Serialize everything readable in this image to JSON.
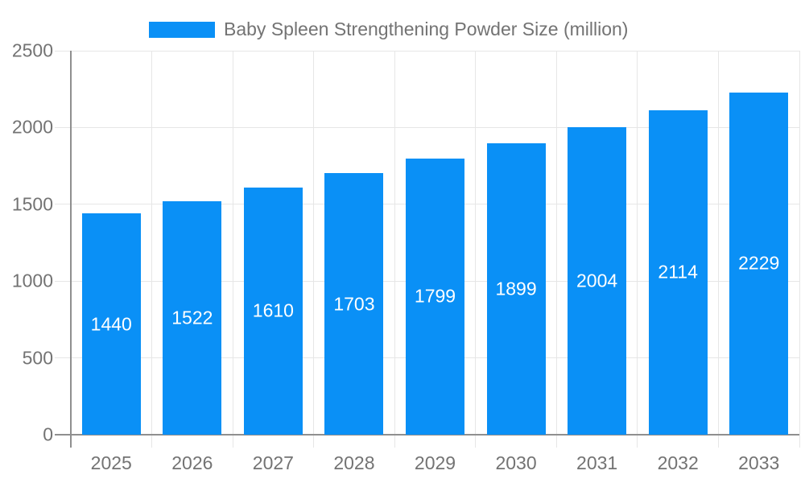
{
  "legend": {
    "label": "Baby Spleen Strengthening Powder Size (million)"
  },
  "colors": {
    "accent": "#0a90f6",
    "grid": "#e6e6e6",
    "axis": "#8f8f8f",
    "text": "#737373",
    "bar_label": "#ffffff",
    "background": "#ffffff"
  },
  "chart_data": {
    "type": "bar",
    "title": "Baby Spleen Strengthening Powder Size (million)",
    "series_name": "Baby Spleen Strengthening Powder Size (million)",
    "categories": [
      "2025",
      "2026",
      "2027",
      "2028",
      "2029",
      "2030",
      "2031",
      "2032",
      "2033"
    ],
    "values": [
      1440,
      1522,
      1610,
      1703,
      1799,
      1899,
      2004,
      2114,
      2229
    ],
    "xlabel": "",
    "ylabel": "",
    "ylim": [
      0,
      2500
    ],
    "yticks": [
      0,
      500,
      1000,
      1500,
      2000,
      2500
    ],
    "grid": true,
    "legend_position": "top",
    "bar_labels_shown": true
  }
}
